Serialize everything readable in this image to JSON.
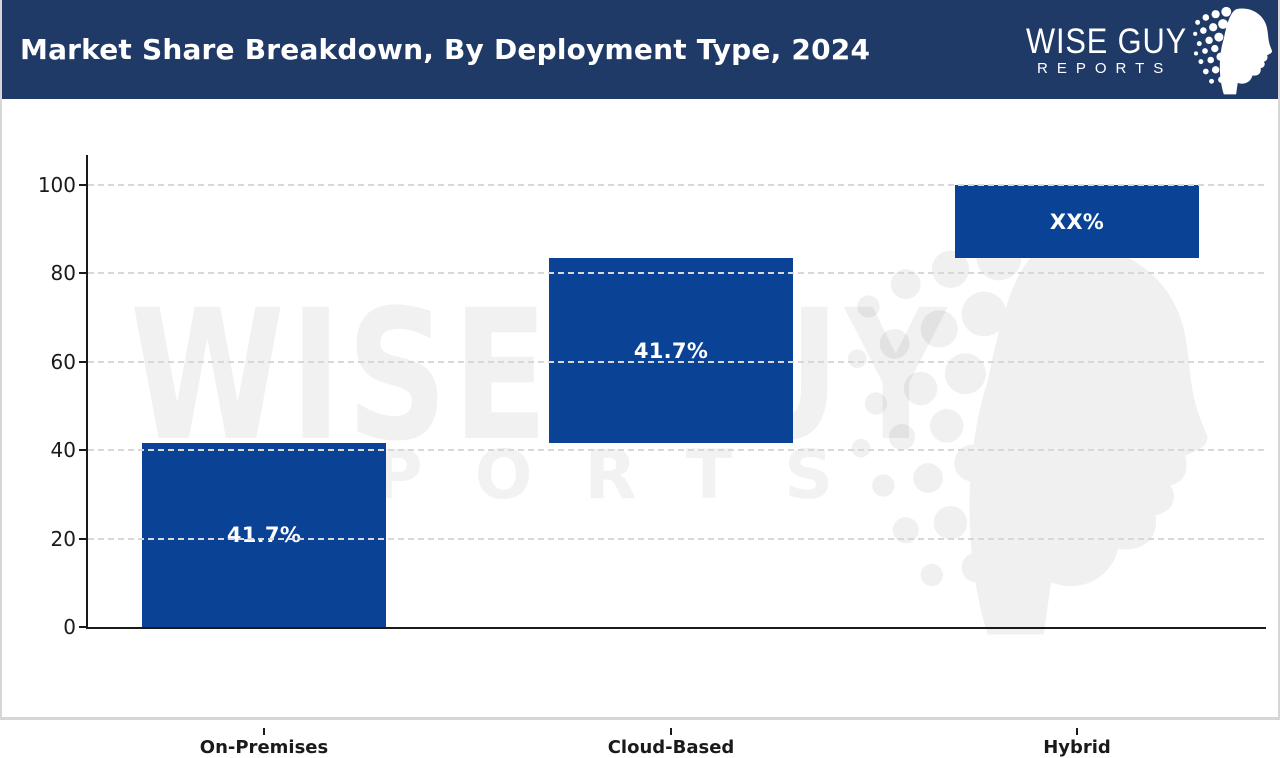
{
  "header": {
    "title": "Market Share Breakdown, By Deployment Type, 2024",
    "logo": {
      "wordmark": "WISE GUY",
      "subtext": "REPORTS"
    }
  },
  "watermark": {
    "line1": "WISE GUY",
    "line2": "REPORTS"
  },
  "chart_data": {
    "type": "bar",
    "subtype": "stacked-waterfall",
    "title": "Market Share Breakdown, By Deployment Type, 2024",
    "categories": [
      "On-Premises",
      "Cloud-Based",
      "Hybrid"
    ],
    "bars": [
      {
        "category": "On-Premises",
        "start": 0,
        "end": 41.7,
        "label": "41.7%"
      },
      {
        "category": "Cloud-Based",
        "start": 41.7,
        "end": 83.4,
        "label": "41.7%"
      },
      {
        "category": "Hybrid",
        "start": 83.4,
        "end": 100,
        "label": "XX%"
      }
    ],
    "ylim": [
      0,
      100
    ],
    "yticks": [
      0,
      20,
      40,
      60,
      80,
      100
    ],
    "grid": true,
    "legend": false,
    "xlabel": "",
    "ylabel": ""
  },
  "colors": {
    "header_bg": "#203a67",
    "bar": "#0a4296",
    "gridline": "#d8d8d8",
    "axis_text": "#1a1a1a",
    "bar_label_text": "#ffffff"
  }
}
